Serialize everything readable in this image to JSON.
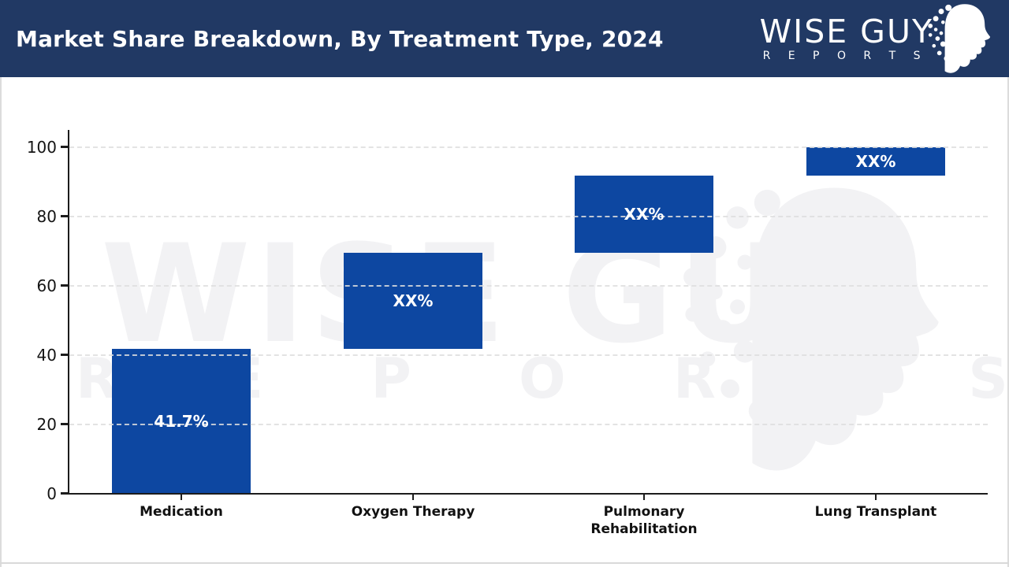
{
  "header": {
    "title": "Market Share Breakdown, By Treatment Type, 2024",
    "background_color": "#213964",
    "logo": {
      "name": "WISE GUY",
      "sub": "R E P O R T S"
    }
  },
  "watermark": {
    "line1": "WISE GUY",
    "line2": "R E P O R T S"
  },
  "chart_data": {
    "type": "bar",
    "subtype": "waterfall",
    "title": "Market Share Breakdown, By Treatment Type, 2024",
    "categories": [
      "Medication",
      "Oxygen Therapy",
      "Pulmonary Rehabilitation",
      "Lung Transplant"
    ],
    "segments": [
      {
        "category": "Medication",
        "start": 0,
        "end": 41.7,
        "label": "41.7%"
      },
      {
        "category": "Oxygen Therapy",
        "start": 41.7,
        "end": 69.5,
        "label": "XX%"
      },
      {
        "category": "Pulmonary Rehabilitation",
        "start": 69.5,
        "end": 91.8,
        "label": "XX%"
      },
      {
        "category": "Lung Transplant",
        "start": 91.8,
        "end": 100,
        "label": "XX%"
      }
    ],
    "ylim": [
      0,
      100
    ],
    "yticks": [
      0,
      20,
      40,
      60,
      80,
      100
    ],
    "grid": true,
    "legend": false,
    "bar_color": "#0D47A1",
    "bar_label_color": "#ffffff",
    "axis_color": "#1c1c1c",
    "grid_color": "#e3e3e3"
  }
}
